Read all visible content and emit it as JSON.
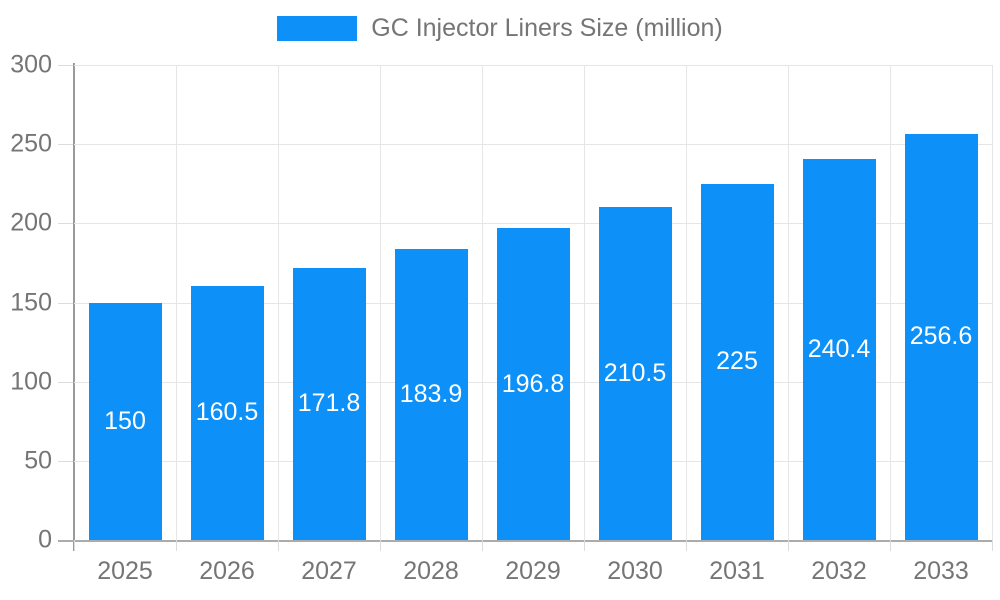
{
  "chart_data": {
    "type": "bar",
    "title": "GC Injector Liners Size (million)",
    "legend_label": "GC Injector Liners Size (million)",
    "categories": [
      "2025",
      "2026",
      "2027",
      "2028",
      "2029",
      "2030",
      "2031",
      "2032",
      "2033"
    ],
    "values": [
      150,
      160.5,
      171.8,
      183.9,
      196.8,
      210.5,
      225,
      240.4,
      256.6
    ],
    "value_labels": [
      "150",
      "160.5",
      "171.8",
      "183.9",
      "196.8",
      "210.5",
      "225",
      "240.4",
      "256.6"
    ],
    "xlabel": "",
    "ylabel": "",
    "ylim": [
      0,
      300
    ],
    "y_ticks": [
      0,
      50,
      100,
      150,
      200,
      250,
      300
    ],
    "grid": true,
    "legend_position": "top",
    "colors": {
      "bar": "#0d90f8",
      "value_label": "#ffffff",
      "tick_label": "#757575",
      "legend_label": "#757575",
      "grid_line": "#e6e6e6",
      "axis_line": "#9a9a9a",
      "background": "#ffffff"
    }
  }
}
